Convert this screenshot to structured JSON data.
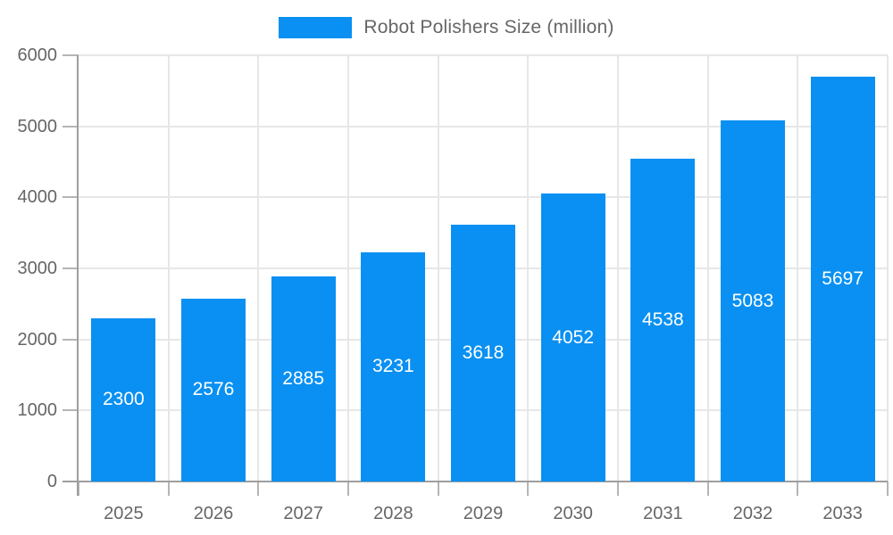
{
  "chart_data": {
    "type": "bar",
    "title": "Robot Polishers Size (million)",
    "categories": [
      "2025",
      "2026",
      "2027",
      "2028",
      "2029",
      "2030",
      "2031",
      "2032",
      "2033"
    ],
    "series": [
      {
        "name": "Robot Polishers Size (million)",
        "values": [
          2300,
          2576,
          2885,
          3231,
          3618,
          4052,
          4538,
          5083,
          5697
        ]
      }
    ],
    "xlabel": "",
    "ylabel": "",
    "ylim": [
      0,
      6000
    ],
    "yticks": [
      0,
      1000,
      2000,
      3000,
      4000,
      5000,
      6000
    ],
    "grid": true,
    "legend_position": "top",
    "value_label_position": "inside-center"
  },
  "colors": {
    "bar": "#0990f2",
    "value_label": "#ffffff",
    "axis_text": "#666666",
    "grid_line": "#e7e7e7",
    "tick_line": "#b5b5b5",
    "axis_line": "#9e9e9e",
    "background": "#ffffff"
  }
}
